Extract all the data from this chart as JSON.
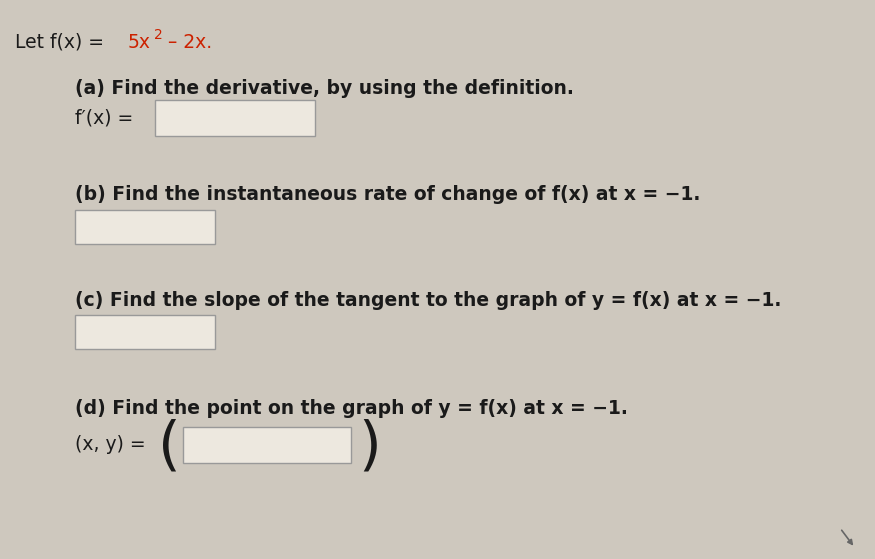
{
  "background_color": "#cec8be",
  "box_fill": "#ede8df",
  "box_edge": "#999999",
  "text_color": "#1a1a1a",
  "red_color": "#cc2200",
  "font_size": 13.5,
  "font_size_small": 10,
  "title_prefix": "Let f(x) = ",
  "title_red": "5x",
  "title_sup": "2",
  "title_suffix": " – 2x.",
  "part_a_label": "(a) Find the derivative, by using the definition.",
  "part_a_lhs": "f′(x) =",
  "part_b_label": "(b) Find the instantaneous rate of change of f(x) at x = −1.",
  "part_c_label": "(c) Find the slope of the tangent to the graph of y = f(x) at x = −1.",
  "part_d_label": "(d) Find the point on the graph of y = f(x) at x = −1.",
  "part_d_lhs": "(x, y) ="
}
